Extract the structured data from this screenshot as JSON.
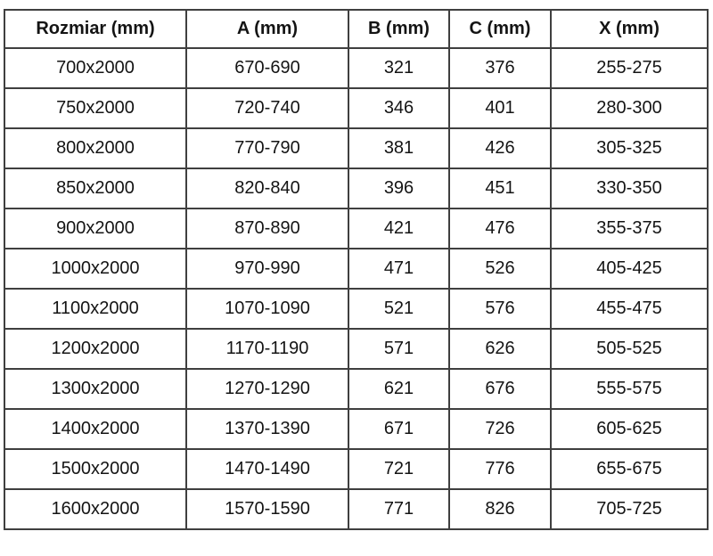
{
  "table": {
    "headers": [
      "Rozmiar (mm)",
      "A (mm)",
      "B (mm)",
      "C (mm)",
      "X (mm)"
    ],
    "rows": [
      [
        "700x2000",
        "670-690",
        "321",
        "376",
        "255-275"
      ],
      [
        "750x2000",
        "720-740",
        "346",
        "401",
        "280-300"
      ],
      [
        "800x2000",
        "770-790",
        "381",
        "426",
        "305-325"
      ],
      [
        "850x2000",
        "820-840",
        "396",
        "451",
        "330-350"
      ],
      [
        "900x2000",
        "870-890",
        "421",
        "476",
        "355-375"
      ],
      [
        "1000x2000",
        "970-990",
        "471",
        "526",
        "405-425"
      ],
      [
        "1100x2000",
        "1070-1090",
        "521",
        "576",
        "455-475"
      ],
      [
        "1200x2000",
        "1170-1190",
        "571",
        "626",
        "505-525"
      ],
      [
        "1300x2000",
        "1270-1290",
        "621",
        "676",
        "555-575"
      ],
      [
        "1400x2000",
        "1370-1390",
        "671",
        "726",
        "605-625"
      ],
      [
        "1500x2000",
        "1470-1490",
        "721",
        "776",
        "655-675"
      ],
      [
        "1600x2000",
        "1570-1590",
        "771",
        "826",
        "705-725"
      ]
    ]
  },
  "chart_data": {
    "type": "table",
    "title": "",
    "columns": [
      "Rozmiar (mm)",
      "A (mm)",
      "B (mm)",
      "C (mm)",
      "X (mm)"
    ],
    "rows": [
      [
        "700x2000",
        "670-690",
        321,
        376,
        "255-275"
      ],
      [
        "750x2000",
        "720-740",
        346,
        401,
        "280-300"
      ],
      [
        "800x2000",
        "770-790",
        381,
        426,
        "305-325"
      ],
      [
        "850x2000",
        "820-840",
        396,
        451,
        "330-350"
      ],
      [
        "900x2000",
        "870-890",
        421,
        476,
        "355-375"
      ],
      [
        "1000x2000",
        "970-990",
        471,
        526,
        "405-425"
      ],
      [
        "1100x2000",
        "1070-1090",
        521,
        576,
        "455-475"
      ],
      [
        "1200x2000",
        "1170-1190",
        571,
        626,
        "505-525"
      ],
      [
        "1300x2000",
        "1270-1290",
        621,
        676,
        "555-575"
      ],
      [
        "1400x2000",
        "1370-1390",
        671,
        726,
        "605-625"
      ],
      [
        "1500x2000",
        "1470-1490",
        721,
        776,
        "655-675"
      ],
      [
        "1600x2000",
        "1570-1590",
        771,
        826,
        "705-725"
      ]
    ]
  },
  "colors": {
    "border": "#3f3f3f",
    "text": "#141414",
    "background": "#ffffff"
  }
}
